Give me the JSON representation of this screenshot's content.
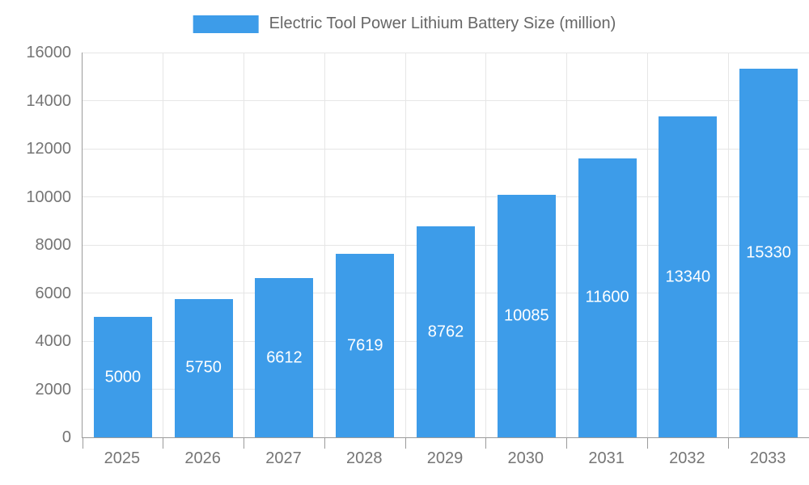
{
  "chart_data": {
    "type": "bar",
    "title": "Electric Tool Power Lithium Battery Size (million)",
    "categories": [
      "2025",
      "2026",
      "2027",
      "2028",
      "2029",
      "2030",
      "2031",
      "2032",
      "2033"
    ],
    "values": [
      5000,
      5750,
      6612,
      7619,
      8762,
      10085,
      11600,
      13340,
      15330
    ],
    "xlabel": "",
    "ylabel": "",
    "ylim": [
      0,
      16000
    ],
    "y_ticks": [
      0,
      2000,
      4000,
      6000,
      8000,
      10000,
      12000,
      14000,
      16000
    ],
    "grid": true,
    "legend_position": "top",
    "colors": {
      "bar": "#3D9CE9",
      "value_label": "#ffffff",
      "axis_text": "#757575",
      "legend_text": "#666666",
      "gridline": "#e6e6e6",
      "axis_line": "#9b9b9b"
    }
  }
}
